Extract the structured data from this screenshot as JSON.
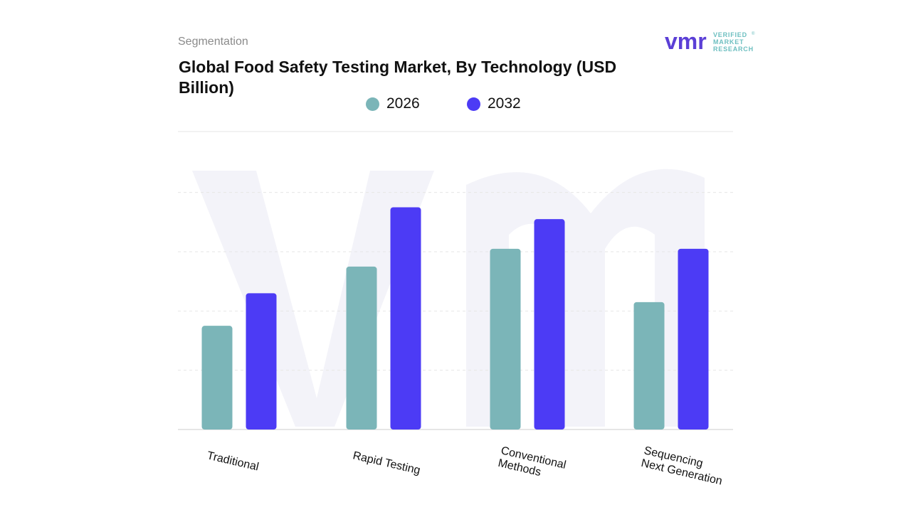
{
  "header": {
    "segment_label": "Segmentation",
    "title": "Global Food Safety Testing Market, By Technology (USD Billion)"
  },
  "logo": {
    "mark": "vmr",
    "line1": "VERIFIED",
    "line2": "MARKET",
    "line3": "RESEARCH",
    "registered": "®"
  },
  "colors": {
    "series_2026": "#7bb5b8",
    "series_2032": "#4c3bf5",
    "logo_purple": "#5b3fd6",
    "logo_teal": "#6dbfc0",
    "grid": "#e6e6e6",
    "watermark": "#f3f3f9"
  },
  "chart_data": {
    "type": "bar",
    "title": "Global Food Safety Testing Market, By Technology (USD Billion)",
    "categories": [
      "Traditional",
      "Rapid Testing",
      "Conventional Methods",
      "Sequencing Next Generation"
    ],
    "category_lines": [
      [
        "Traditional"
      ],
      [
        "Rapid Testing"
      ],
      [
        "Conventional",
        "Methods"
      ],
      [
        "Sequencing",
        "Next Generation"
      ]
    ],
    "series": [
      {
        "name": "2026",
        "values": [
          3.5,
          5.5,
          6.1,
          4.3
        ]
      },
      {
        "name": "2032",
        "values": [
          4.6,
          7.5,
          7.1,
          6.1
        ]
      }
    ],
    "ylim": [
      0,
      9
    ],
    "grid": true,
    "legend_position": "top-center",
    "xlabel": "",
    "ylabel": ""
  }
}
